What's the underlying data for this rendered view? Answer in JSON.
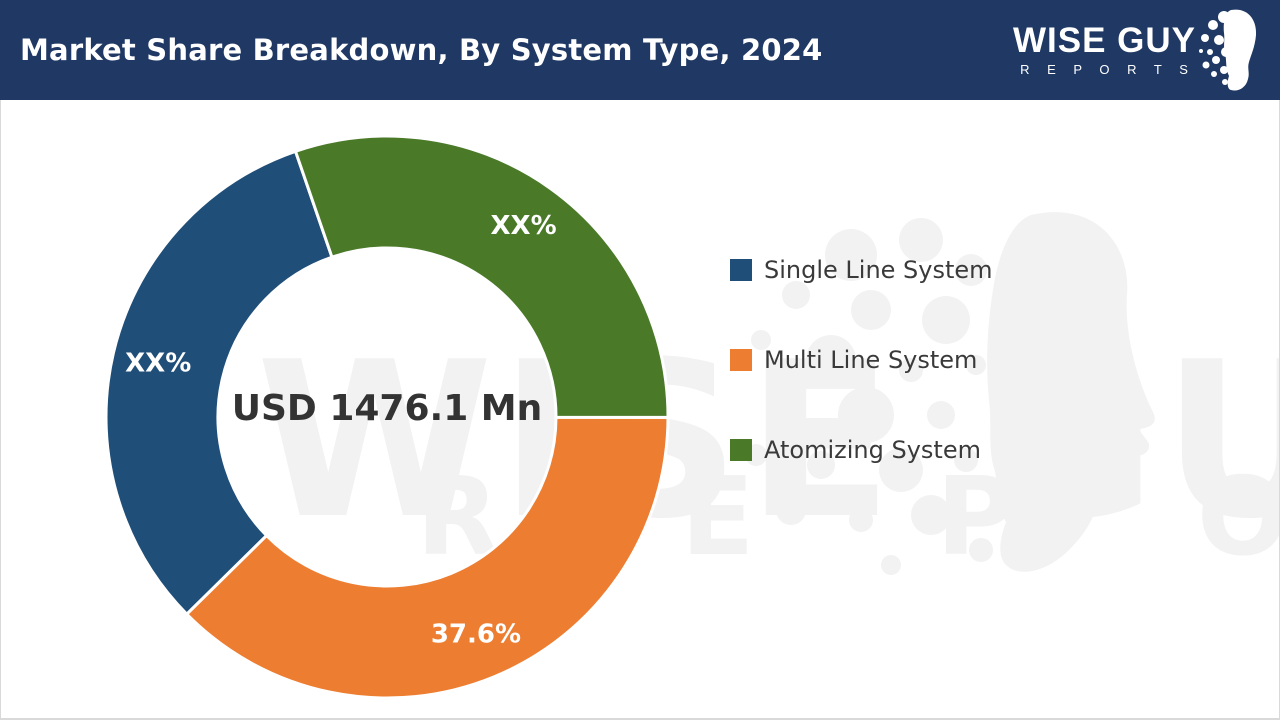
{
  "header": {
    "title": "Market Share Breakdown, By System Type, 2024",
    "bg_color": "#1f3864",
    "logo": {
      "line1": "WISE GUY",
      "line2": "R E P O R T S"
    }
  },
  "watermark": {
    "line1": "WISE GUY",
    "line2": "R E P O R T S"
  },
  "chart_data": {
    "type": "pie",
    "subtype": "donut",
    "title": "Market Share Breakdown, By System Type, 2024",
    "center_label": "USD 1476.1 Mn",
    "start_angle_deg_from_top": 341,
    "direction": "counterclockwise",
    "inner_radius_ratio": 0.6,
    "legend_position": "right",
    "slice_label_color": "#ffffff",
    "slices": [
      {
        "name": "Single Line System",
        "label": "XX%",
        "value_pct": 32.1,
        "color": "#1f4e79"
      },
      {
        "name": "Multi Line System",
        "label": "37.6%",
        "value_pct": 37.6,
        "color": "#ed7d31"
      },
      {
        "name": "Atomizing System",
        "label": "XX%",
        "value_pct": 30.3,
        "color": "#4a7a28"
      }
    ]
  },
  "colors": {
    "header_bg": "#1f3864",
    "center_text": "#333333",
    "legend_text": "#3a3a3a",
    "watermark": "#f2f2f2",
    "border": "#d9d9d9"
  }
}
